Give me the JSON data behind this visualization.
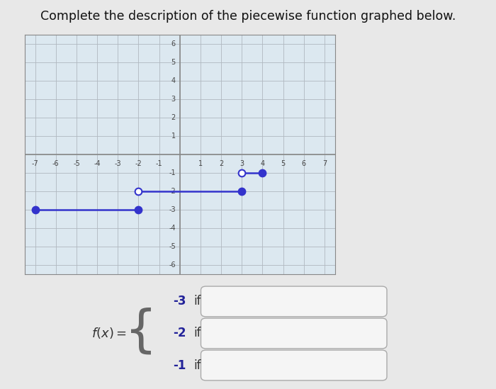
{
  "title": "Complete the description of the piecewise function graphed below.",
  "title_fontsize": 12.5,
  "background_color": "#e8e8e8",
  "plot_bg_color": "#dce8f0",
  "grid_color": "#b0b8c0",
  "axis_color": "#888888",
  "xlim": [
    -7.5,
    7.5
  ],
  "ylim": [
    -6.5,
    6.5
  ],
  "xticks": [
    -7,
    -6,
    -5,
    -4,
    -3,
    -2,
    -1,
    1,
    2,
    3,
    4,
    5,
    6,
    7
  ],
  "yticks": [
    -6,
    -5,
    -4,
    -3,
    -2,
    -1,
    1,
    2,
    3,
    4,
    5,
    6
  ],
  "segments": [
    {
      "y": -3,
      "x_start": -7,
      "x_end": -2,
      "start_filled": true,
      "end_filled": true
    },
    {
      "y": -2,
      "x_start": -2,
      "x_end": 3,
      "start_filled": false,
      "end_filled": true
    },
    {
      "y": -1,
      "x_start": 3,
      "x_end": 4,
      "start_filled": false,
      "end_filled": true
    }
  ],
  "line_color": "#3333cc",
  "dot_filled_color": "#3333cc",
  "dot_open_color": "#ffffff",
  "dot_edge_color": "#3333cc",
  "dot_size": 7,
  "piecewise_cases": [
    {
      "value": "-3",
      "condition": "if"
    },
    {
      "value": "-2",
      "condition": "if"
    },
    {
      "value": "-1",
      "condition": "if"
    }
  ],
  "tick_fontsize": 7,
  "tick_color": "#444444"
}
